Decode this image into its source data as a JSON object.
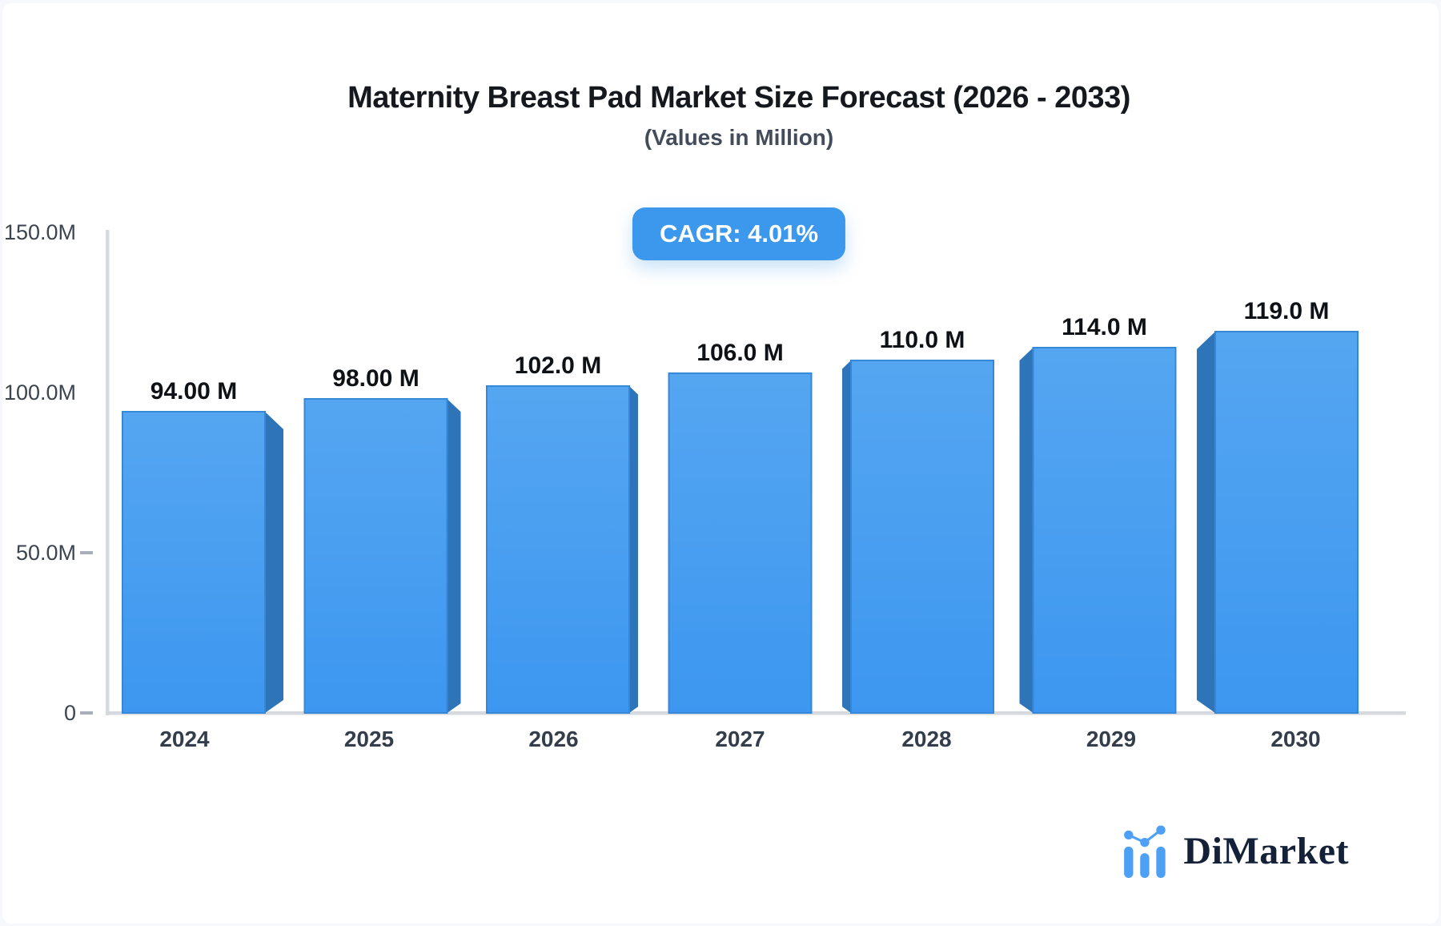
{
  "page": {
    "background": "#f6f8fb",
    "card_background": "#ffffff"
  },
  "header": {
    "title": "Maternity Breast Pad Market Size Forecast (2026 - 2033)",
    "subtitle": "(Values in Million)",
    "cagr_badge": "CAGR: 4.01%"
  },
  "chart_data": {
    "type": "bar",
    "title": "Maternity Breast Pad Market Size Forecast (2026 - 2033)",
    "subtitle": "(Values in Million)",
    "cagr_percent": 4.01,
    "categories": [
      "2024",
      "2025",
      "2026",
      "2027",
      "2028",
      "2029",
      "2030"
    ],
    "values": [
      94,
      98,
      102,
      106,
      110,
      114,
      119
    ],
    "value_labels": [
      "94.00 M",
      "98.00 M",
      "102.0 M",
      "106.0 M",
      "110.0 M",
      "114.0 M",
      "119.0 M"
    ],
    "ylim": [
      0,
      150
    ],
    "y_ticks": [
      {
        "label": "150.0M",
        "value": 150,
        "dash": false
      },
      {
        "label": "100.0M",
        "value": 100,
        "dash": false
      },
      {
        "label": "50.0M",
        "value": 50,
        "dash": true
      },
      {
        "label": "0",
        "value": 0,
        "dash": true
      }
    ],
    "grid": false,
    "legend": false,
    "bar_style": "pseudo-3d-perspective",
    "colors": {
      "bar_face_top": "#55a6f1",
      "bar_face_bottom": "#3d97f0",
      "bar_face_stroke": "#3787d8",
      "bar_side": "#2d75b8",
      "axis_line": "#d6dade",
      "tick_dash": "#a8afb9",
      "tick_label": "#3c4450",
      "value_label": "#0e1115",
      "category_label": "#333d4b"
    }
  },
  "branding": {
    "logo_text": "DiMarket",
    "logo_icon": "bar-line-chart-icon",
    "logo_icon_color": "#4da0f4",
    "logo_text_color": "#142138"
  },
  "colors": {
    "accent_blue": "#3b98ed"
  }
}
